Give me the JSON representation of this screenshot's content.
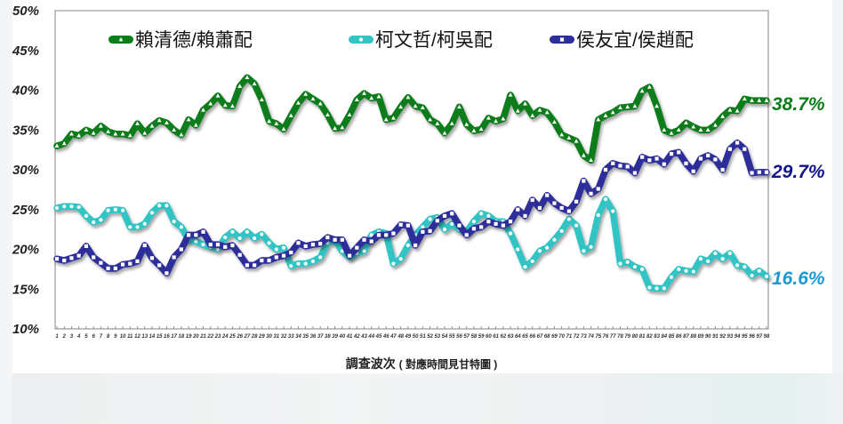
{
  "chart_data": {
    "type": "line",
    "title": "",
    "xlabel": "調查波次（對應時間見甘特圖）",
    "ylabel": "",
    "ylim": [
      10,
      50
    ],
    "yticks": [
      "10%",
      "15%",
      "20%",
      "25%",
      "30%",
      "35%",
      "40%",
      "45%",
      "50%"
    ],
    "xlim": [
      1,
      98
    ],
    "grid": true,
    "legend_position": "top",
    "x": [
      1,
      2,
      3,
      4,
      5,
      6,
      7,
      8,
      9,
      10,
      11,
      12,
      13,
      14,
      15,
      16,
      17,
      18,
      19,
      20,
      21,
      22,
      23,
      24,
      25,
      26,
      27,
      28,
      29,
      30,
      31,
      32,
      33,
      34,
      35,
      36,
      37,
      38,
      39,
      40,
      41,
      42,
      43,
      44,
      45,
      46,
      47,
      48,
      49,
      50,
      51,
      52,
      53,
      54,
      55,
      56,
      57,
      58,
      59,
      60,
      61,
      62,
      63,
      64,
      65,
      66,
      67,
      68,
      69,
      70,
      71,
      72,
      73,
      74,
      75,
      76,
      77,
      78,
      79,
      80,
      81,
      82,
      83,
      84,
      85,
      86,
      87,
      88,
      89,
      90,
      91,
      92,
      93,
      94,
      95,
      96,
      97,
      98
    ],
    "series": [
      {
        "name": "賴清德/賴蕭配",
        "color": "#0a7d1a",
        "marker": "triangle",
        "end_label": "38.7%",
        "values": [
          33.0,
          33.3,
          34.5,
          34.3,
          35.0,
          34.6,
          35.5,
          34.8,
          34.5,
          34.5,
          34.3,
          35.8,
          34.6,
          35.5,
          36.2,
          35.9,
          35.0,
          34.4,
          36.3,
          35.6,
          37.5,
          38.3,
          39.3,
          38.1,
          38.0,
          40.5,
          41.6,
          40.8,
          38.8,
          36.1,
          35.8,
          35.1,
          36.8,
          38.4,
          39.5,
          38.9,
          38.3,
          36.9,
          35.2,
          35.3,
          36.9,
          38.8,
          39.6,
          39.0,
          39.2,
          36.3,
          36.5,
          37.9,
          39.1,
          38.0,
          37.8,
          36.3,
          35.8,
          34.6,
          35.8,
          37.9,
          35.7,
          34.9,
          35.1,
          36.5,
          36.1,
          36.4,
          39.4,
          37.4,
          38.3,
          36.8,
          37.5,
          37.2,
          36.0,
          34.4,
          34.0,
          33.6,
          31.8,
          31.2,
          36.3,
          36.8,
          37.2,
          37.8,
          37.9,
          38.0,
          39.9,
          40.4,
          38.0,
          35.0,
          34.6,
          35.0,
          35.9,
          35.4,
          35.0,
          35.0,
          35.6,
          36.7,
          37.5,
          37.4,
          38.9,
          38.7,
          38.7,
          38.7
        ]
      },
      {
        "name": "柯文哲/柯吳配",
        "color": "#33c4c4",
        "marker": "circle",
        "end_label": "16.6%",
        "values": [
          25.2,
          25.4,
          25.4,
          25.3,
          24.2,
          23.4,
          23.7,
          24.9,
          25.0,
          24.9,
          22.8,
          22.8,
          23.2,
          24.6,
          25.5,
          25.5,
          23.5,
          22.8,
          21.2,
          21.0,
          20.6,
          20.3,
          20.0,
          21.5,
          22.2,
          21.4,
          22.2,
          21.4,
          21.9,
          20.8,
          20.0,
          20.2,
          17.9,
          18.2,
          18.2,
          18.5,
          19.0,
          20.8,
          21.2,
          19.8,
          19.0,
          19.5,
          19.8,
          21.8,
          22.2,
          22.0,
          18.2,
          18.8,
          20.5,
          21.8,
          22.8,
          23.8,
          24.0,
          22.5,
          23.2,
          22.5,
          22.2,
          23.5,
          24.5,
          24.2,
          23.5,
          23.5,
          22.0,
          20.0,
          17.8,
          18.5,
          19.8,
          20.2,
          21.2,
          22.3,
          23.8,
          23.0,
          19.8,
          20.3,
          24.3,
          26.3,
          24.8,
          18.2,
          18.4,
          17.8,
          17.5,
          15.2,
          15.1,
          15.1,
          16.5,
          17.5,
          17.3,
          17.2,
          18.8,
          18.5,
          19.5,
          18.8,
          19.5,
          18.0,
          17.8,
          16.7,
          17.3,
          16.6
        ]
      },
      {
        "name": "侯友宜/侯趙配",
        "color": "#2e2e9a",
        "marker": "square",
        "end_label": "29.7%",
        "values": [
          18.8,
          18.6,
          18.9,
          19.2,
          20.4,
          19.0,
          18.3,
          17.6,
          17.6,
          18.1,
          18.2,
          18.5,
          20.5,
          18.9,
          18.0,
          17.0,
          19.0,
          20.0,
          21.8,
          21.8,
          22.2,
          20.6,
          20.6,
          20.3,
          20.5,
          19.3,
          18.0,
          18.0,
          18.6,
          18.6,
          19.0,
          19.2,
          19.6,
          20.8,
          20.4,
          20.6,
          20.7,
          21.5,
          21.2,
          21.2,
          19.2,
          20.2,
          21.2,
          21.0,
          21.8,
          21.8,
          22.0,
          23.1,
          23.0,
          20.5,
          22.2,
          22.3,
          23.6,
          24.2,
          24.5,
          23.0,
          21.8,
          22.6,
          22.8,
          23.5,
          23.2,
          23.0,
          23.5,
          25.0,
          24.2,
          26.2,
          25.2,
          26.8,
          25.8,
          25.2,
          24.8,
          26.0,
          28.6,
          27.0,
          27.6,
          30.0,
          30.8,
          30.5,
          30.4,
          29.6,
          31.6,
          31.2,
          31.4,
          30.7,
          32.0,
          32.2,
          30.8,
          29.8,
          31.4,
          31.8,
          31.3,
          30.0,
          32.6,
          33.4,
          32.6,
          29.6,
          29.7,
          29.7
        ]
      }
    ]
  },
  "legend": {
    "items": [
      {
        "label": "賴清德/賴蕭配",
        "color": "#0a7d1a"
      },
      {
        "label": "柯文哲/柯吳配",
        "color": "#33c4c4"
      },
      {
        "label": "侯友宜/侯趙配",
        "color": "#2e2e9a"
      }
    ]
  },
  "end_labels": {
    "lai": {
      "text": "38.7%",
      "color": "#0a7d1a"
    },
    "ho": {
      "text": "29.7%",
      "color": "#14148a"
    },
    "ko": {
      "text": "16.6%",
      "color": "#1e9ad0"
    }
  },
  "axis": {
    "xlabel_main": "調查波次",
    "xlabel_paren": "( 對應時間見甘特圖 )"
  }
}
